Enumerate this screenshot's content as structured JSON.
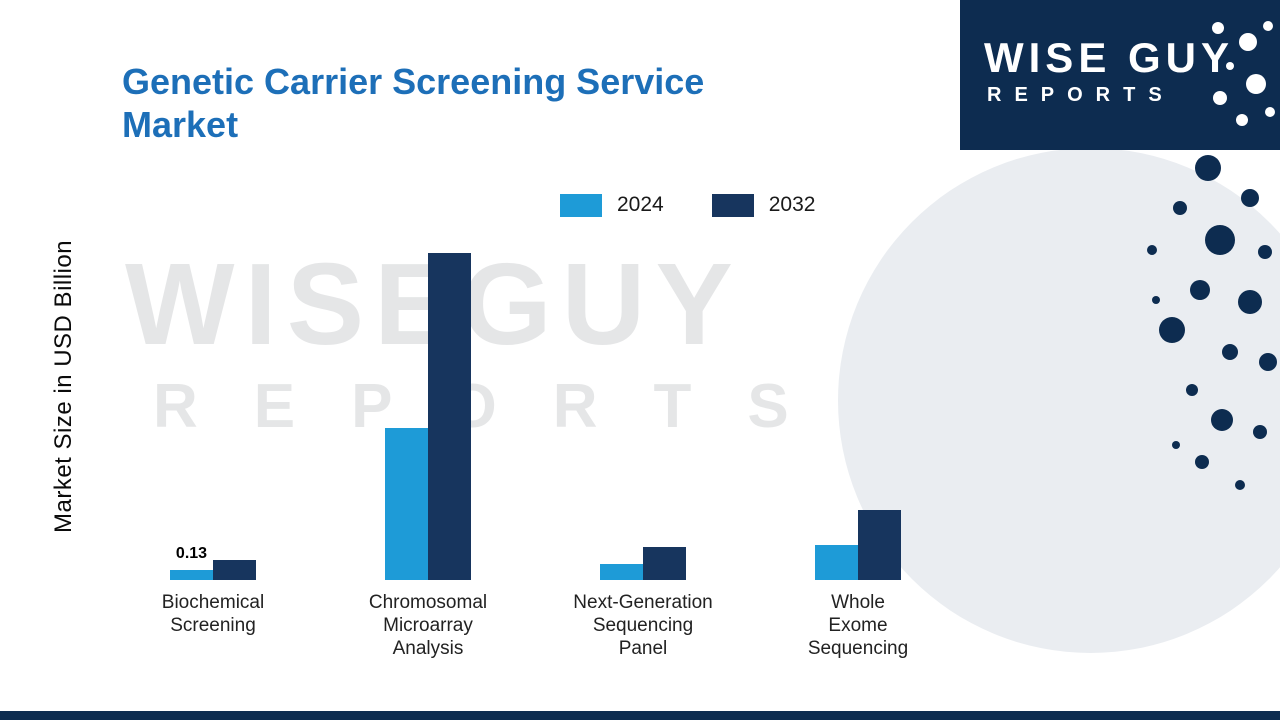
{
  "page": {
    "title": "Genetic Carrier Screening Service Market"
  },
  "logo": {
    "name_line": "WISE GUY",
    "sub_line": "REPORTS"
  },
  "watermark": {
    "line1": "WISEGUY",
    "line2": "REPORTS"
  },
  "colors": {
    "title_blue": "#1d6fb8",
    "bar_2024": "#1e9bd7",
    "bar_2032": "#17355e",
    "navy_block": "#0d2c50",
    "watermark_gray": "#eaedf1"
  },
  "chart_data": {
    "type": "bar",
    "title": "Genetic Carrier Screening Service Market",
    "ylabel": "Market Size in USD Billion",
    "ylim": [
      0,
      4.5
    ],
    "grid": false,
    "legend_position": "top-center",
    "categories": [
      "Biochemical Screening",
      "Chromosomal Microarray Analysis",
      "Next-Generation Sequencing Panel",
      "Whole Exome Sequencing"
    ],
    "category_label_lines": [
      [
        "Biochemical",
        "Screening"
      ],
      [
        "Chromosomal",
        "Microarray",
        "Analysis"
      ],
      [
        "Next-Generation",
        "Sequencing",
        "Panel"
      ],
      [
        "Whole",
        "Exome",
        "Sequencing"
      ]
    ],
    "series": [
      {
        "name": "2024",
        "color": "#1e9bd7",
        "values": [
          0.13,
          1.95,
          0.2,
          0.45
        ]
      },
      {
        "name": "2032",
        "color": "#17355e",
        "values": [
          0.26,
          4.2,
          0.42,
          0.9
        ]
      }
    ],
    "annotations": [
      {
        "category_index": 0,
        "series_index": 0,
        "text": "0.13"
      }
    ]
  }
}
